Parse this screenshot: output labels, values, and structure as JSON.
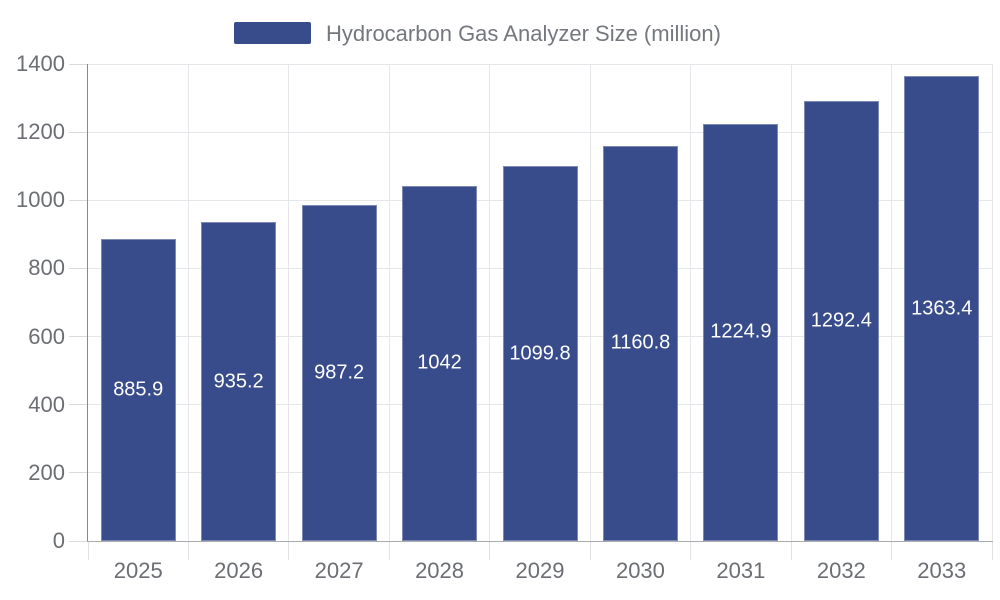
{
  "legend": {
    "label": "Hydrocarbon Gas Analyzer Size (million)"
  },
  "colors": {
    "bar": "#384b8b",
    "legend_text": "#74787e",
    "axis_label": "#6b6e73",
    "gridline": "#e4e6ea",
    "value_label": "#ffffff"
  },
  "chart_data": {
    "type": "bar",
    "title": "Hydrocarbon Gas Analyzer Size (million)",
    "categories": [
      "2025",
      "2026",
      "2027",
      "2028",
      "2029",
      "2030",
      "2031",
      "2032",
      "2033"
    ],
    "values": [
      885.9,
      935.2,
      987.2,
      1042,
      1099.8,
      1160.8,
      1224.9,
      1292.4,
      1363.4
    ],
    "value_labels": [
      "885.9",
      "935.2",
      "987.2",
      "1042",
      "1099.8",
      "1160.8",
      "1224.9",
      "1292.4",
      "1363.4"
    ],
    "series": [
      {
        "name": "Hydrocarbon Gas Analyzer Size (million)",
        "values": [
          885.9,
          935.2,
          987.2,
          1042,
          1099.8,
          1160.8,
          1224.9,
          1292.4,
          1363.4
        ]
      }
    ],
    "xlabel": "",
    "ylabel": "",
    "ylim": [
      0,
      1400
    ],
    "yticks": [
      0,
      200,
      400,
      600,
      800,
      1000,
      1200,
      1400
    ],
    "grid": true,
    "legend_position": "top-center",
    "value_label_position": "inside-center"
  }
}
